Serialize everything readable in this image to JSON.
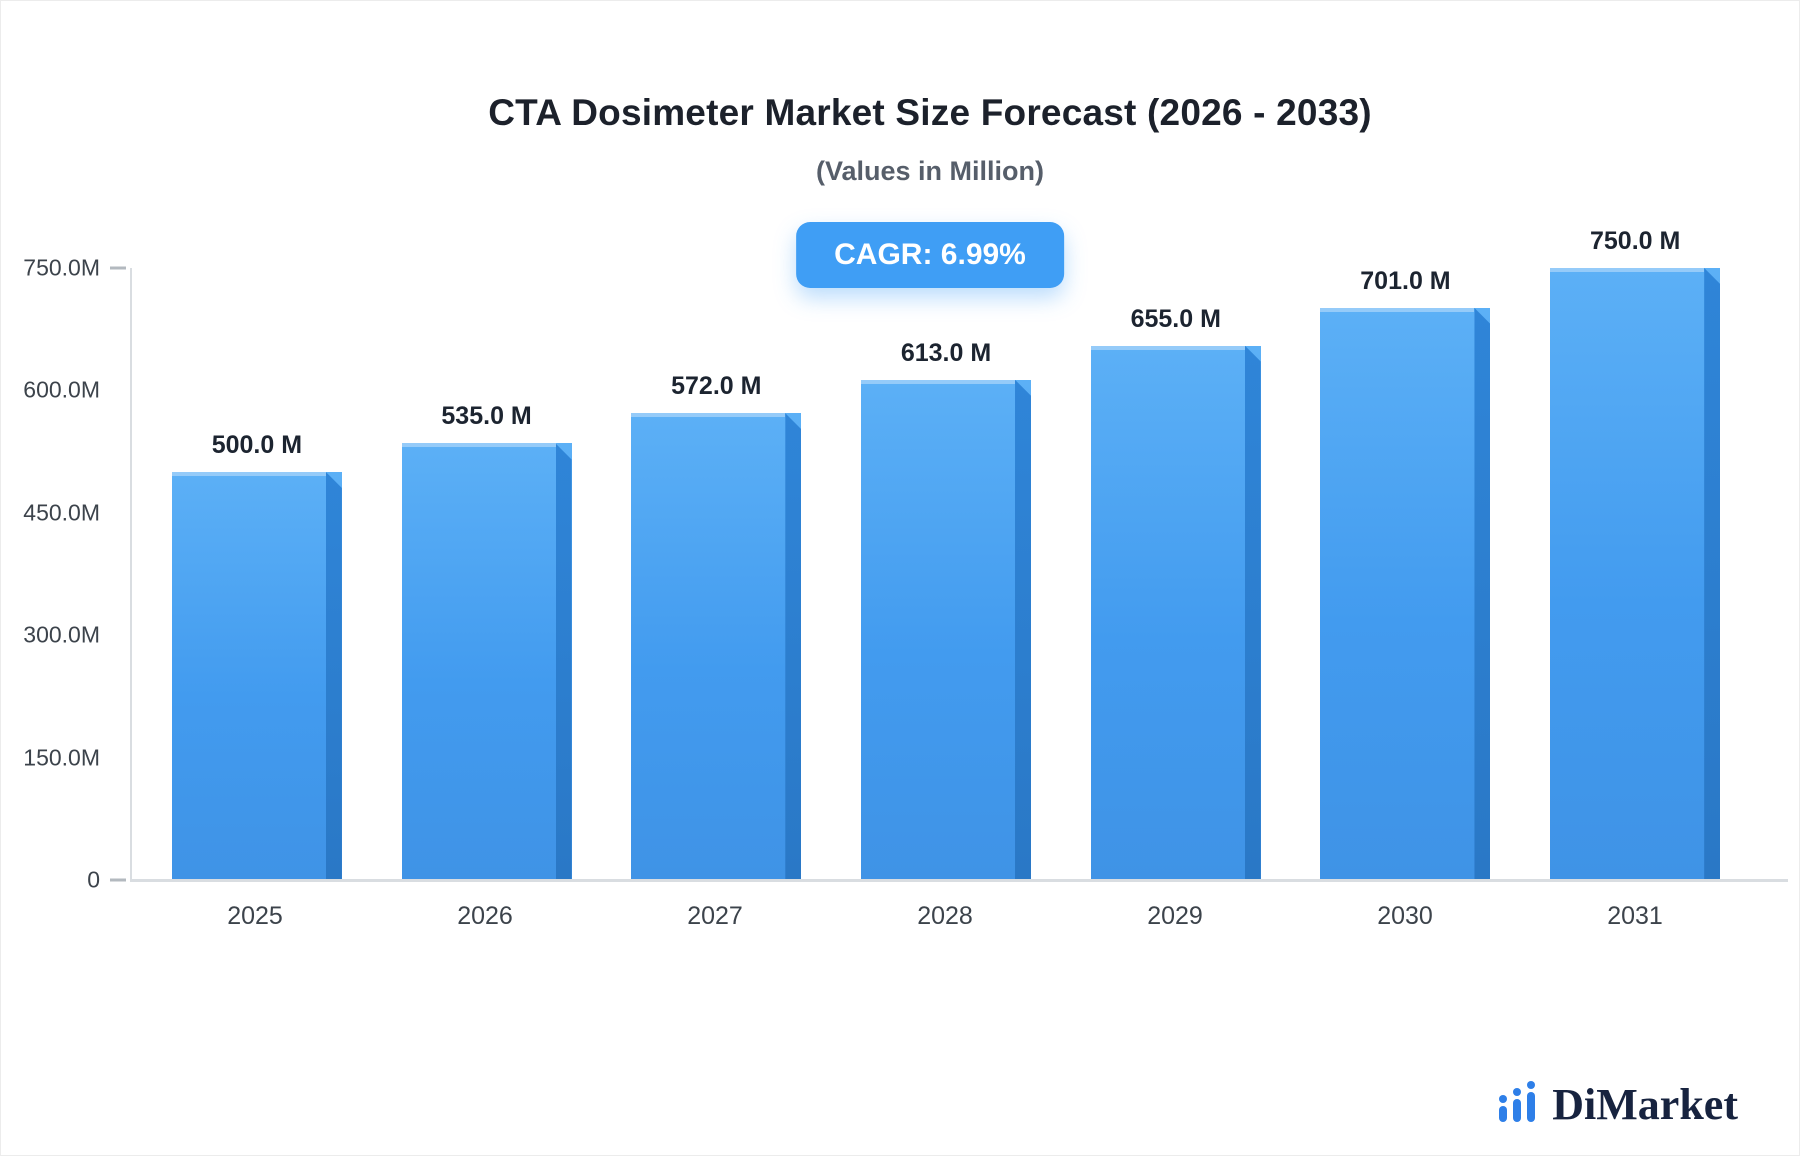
{
  "header": {
    "title": "CTA Dosimeter Market Size Forecast (2026 - 2033)",
    "subtitle": "(Values in Million)"
  },
  "badge": {
    "label": "CAGR: 6.99%"
  },
  "logo": {
    "name": "DiMarket"
  },
  "chart_data": {
    "type": "bar",
    "title": "CTA Dosimeter Market Size Forecast (2026 - 2033)",
    "subtitle": "(Values in Million)",
    "annotation": "CAGR: 6.99%",
    "categories": [
      "2025",
      "2026",
      "2027",
      "2028",
      "2029",
      "2030",
      "2031"
    ],
    "values": [
      500,
      535,
      572,
      613,
      655,
      701,
      750
    ],
    "value_labels": [
      "500.0 M",
      "535.0 M",
      "572.0 M",
      "613.0 M",
      "655.0 M",
      "701.0 M",
      "750.0 M"
    ],
    "y_ticks": [
      {
        "label": "750.0M",
        "value": 750,
        "dash": true
      },
      {
        "label": "600.0M",
        "value": 600,
        "dash": false
      },
      {
        "label": "450.0M",
        "value": 450,
        "dash": false
      },
      {
        "label": "300.0M",
        "value": 300,
        "dash": false
      },
      {
        "label": "150.0M",
        "value": 150,
        "dash": false
      },
      {
        "label": "0",
        "value": 0,
        "dash": true
      }
    ],
    "ylim": [
      0,
      750
    ],
    "xlabel": "",
    "ylabel": "",
    "grid": "off",
    "legend": "none",
    "bar_color": "#44a0f2",
    "bar_side_color": "#2b7ccb",
    "badge_color": "#3f9ef5"
  }
}
